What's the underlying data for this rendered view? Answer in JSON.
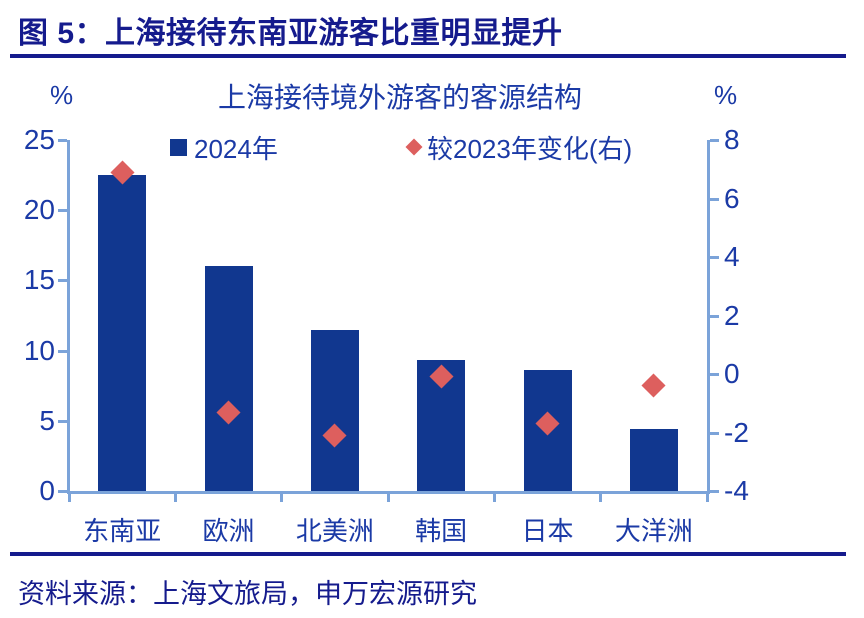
{
  "header": {
    "title": "图 5：上海接待东南亚游客比重明显提升"
  },
  "chart_data": {
    "type": "bar",
    "title": "上海接待境外游客的客源结构",
    "categories": [
      "东南亚",
      "欧洲",
      "北美洲",
      "韩国",
      "日本",
      "大洋洲"
    ],
    "series": [
      {
        "name": "2024年",
        "type": "bar",
        "axis": "left",
        "values": [
          22.5,
          16.0,
          11.5,
          9.3,
          8.6,
          4.4
        ]
      },
      {
        "name": "较2023年变化(右)",
        "type": "scatter",
        "marker": "diamond",
        "axis": "right",
        "values": [
          6.9,
          -1.3,
          -2.1,
          -0.1,
          -1.7,
          -0.4
        ]
      }
    ],
    "left_axis": {
      "unit": "%",
      "min": 0,
      "max": 25,
      "ticks": [
        0,
        5,
        10,
        15,
        20,
        25
      ]
    },
    "right_axis": {
      "unit": "%",
      "min": -4,
      "max": 8,
      "ticks": [
        -4,
        -2,
        0,
        2,
        4,
        6,
        8
      ]
    },
    "legend_position": "top-inside",
    "grid": false,
    "colors": {
      "header_navy": "#151b8d",
      "chart_text_blue": "#1b3aa6",
      "bar_blue": "#11378f",
      "diamond_red": "#dd5f5e",
      "axis_light_blue": "#7ba3d9"
    }
  },
  "source": {
    "text": "资料来源：上海文旅局，申万宏源研究"
  }
}
